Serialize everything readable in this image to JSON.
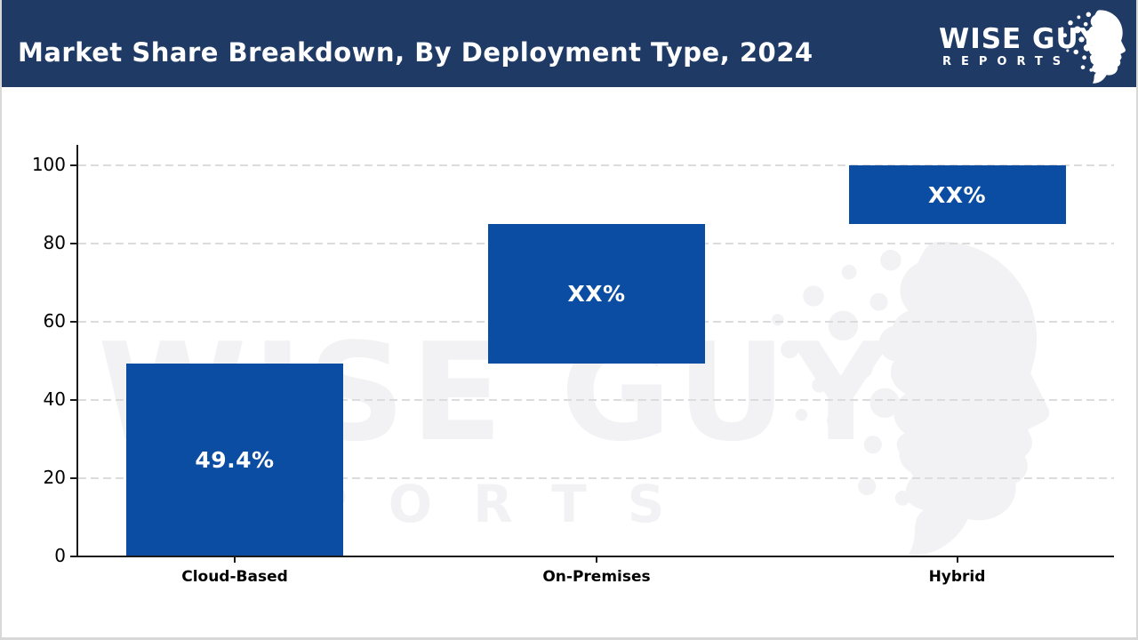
{
  "header": {
    "title": "Market Share Breakdown, By Deployment Type, 2024"
  },
  "brand": {
    "name": "WISE GUY",
    "subtitle": "REPORTS"
  },
  "watermark": {
    "line1": "WISE GUY",
    "line2": "REPORTS"
  },
  "chart_data": {
    "type": "bar",
    "subtype": "stacked-waterfall-segments",
    "title": "Market Share Breakdown, By Deployment Type, 2024",
    "categories": [
      "Cloud-Based",
      "On-Premises",
      "Hybrid"
    ],
    "segments": [
      {
        "category": "Cloud-Based",
        "start": 0,
        "end": 49.4,
        "value": 49.4,
        "label": "49.4%"
      },
      {
        "category": "On-Premises",
        "start": 49.4,
        "end": 85,
        "value": 35.6,
        "label": "XX%"
      },
      {
        "category": "Hybrid",
        "start": 85,
        "end": 100,
        "value": 15,
        "label": "XX%"
      }
    ],
    "xlabel": "",
    "ylabel": "",
    "ylim": [
      0,
      100
    ],
    "yticks": [
      0,
      20,
      40,
      60,
      80,
      100
    ],
    "grid": "horizontal dashed",
    "legend": "none",
    "colors": {
      "bar": "#0b4da2",
      "bar_label": "#ffffff",
      "header_bg": "#203a66",
      "gridline": "#dcdcdc",
      "axis": "#1a1a1a",
      "watermark": "#f2f2f4"
    }
  }
}
